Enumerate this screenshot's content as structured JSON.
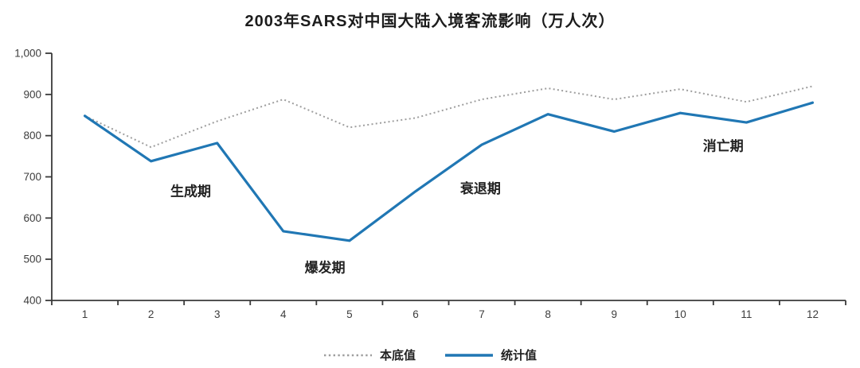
{
  "chart_data": {
    "type": "line",
    "title": "2003年SARS对中国大陆入境客流影响（万人次）",
    "categories": [
      "1",
      "2",
      "3",
      "4",
      "5",
      "6",
      "7",
      "8",
      "9",
      "10",
      "11",
      "12"
    ],
    "series": [
      {
        "name": "本底值",
        "style": "dotted",
        "color": "#9E9E9E",
        "values": [
          848,
          772,
          835,
          888,
          820,
          843,
          888,
          915,
          888,
          913,
          882,
          920
        ]
      },
      {
        "name": "统计值",
        "style": "solid",
        "color": "#2077B4",
        "values": [
          848,
          738,
          782,
          568,
          545,
          665,
          778,
          852,
          810,
          855,
          832,
          880
        ]
      }
    ],
    "xlabel": "",
    "ylabel": "",
    "ylim": [
      400,
      1000
    ],
    "ytick_step": 100,
    "y_tick_labels": [
      "400",
      "500",
      "600",
      "700",
      "800",
      "900",
      "1,000"
    ],
    "grid": false,
    "legend_position": "bottom",
    "axis_color": "#3a3a3a",
    "annotations": [
      {
        "label": "生成期",
        "x": 2.6,
        "y": 665
      },
      {
        "label": "爆发期",
        "x": 4.63,
        "y": 480
      },
      {
        "label": "衰退期",
        "x": 6.98,
        "y": 672
      },
      {
        "label": "消亡期",
        "x": 10.65,
        "y": 775
      }
    ]
  }
}
